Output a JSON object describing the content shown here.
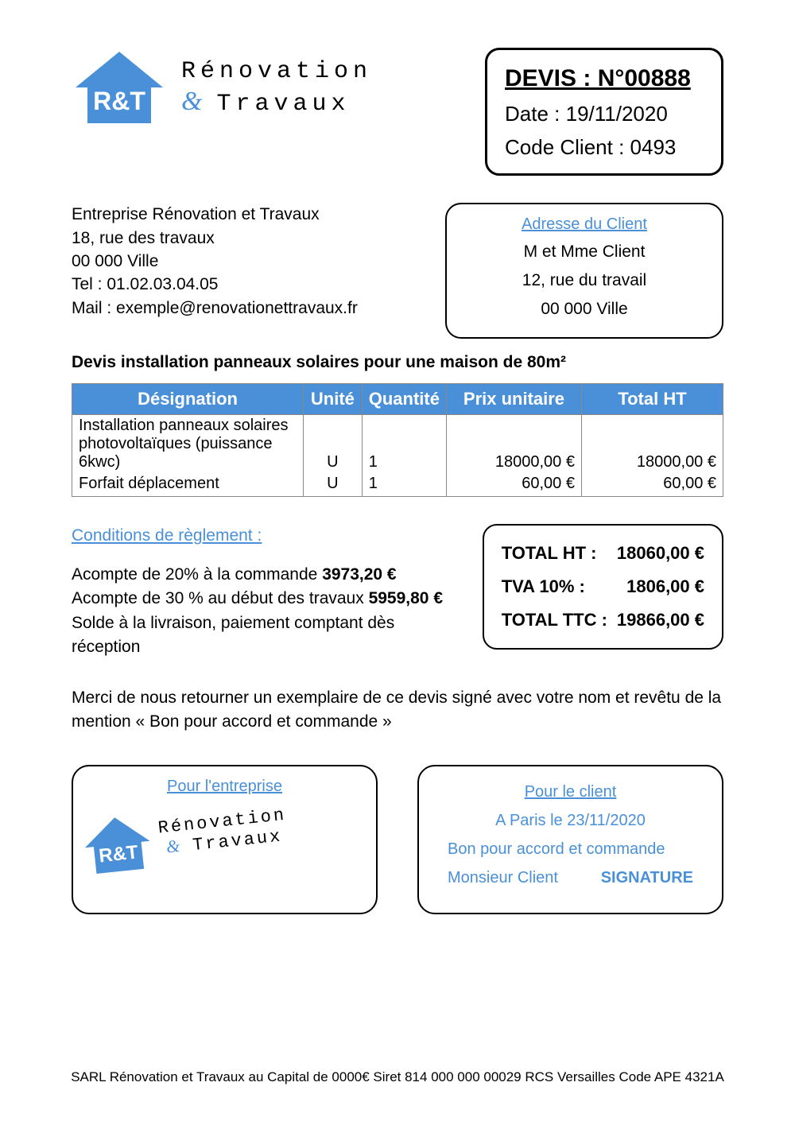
{
  "colors": {
    "accent": "#4a90d9",
    "text": "#000000",
    "table_header_bg": "#4a90d9",
    "table_header_fg": "#ffffff",
    "border": "#000000",
    "table_border": "#888888",
    "background": "#ffffff"
  },
  "logo": {
    "line1": "Rénovation",
    "ampersand": "&",
    "line2": "Travaux",
    "badge_text": "R&T"
  },
  "devis_box": {
    "title": "DEVIS : N°00888",
    "date_label": "Date :",
    "date": "19/11/2020",
    "code_label": "Code Client :",
    "code": "0493"
  },
  "company": {
    "name": "Entreprise Rénovation et Travaux",
    "street": "18, rue des travaux",
    "city": "00 000 Ville",
    "tel_label": "Tel :",
    "tel": "01.02.03.04.05",
    "mail_label": "Mail :",
    "mail": "exemple@renovationettravaux.fr"
  },
  "client": {
    "header": "Adresse du Client",
    "name": "M et Mme Client",
    "street": "12, rue du travail",
    "city": "00 000 Ville"
  },
  "devis_title": "Devis installation panneaux solaires pour une maison de 80m²",
  "table": {
    "columns": [
      "Désignation",
      "Unité",
      "Quantité",
      "Prix unitaire",
      "Total HT"
    ],
    "col_widths_pct": [
      36,
      9,
      12,
      21,
      22
    ],
    "rows": [
      {
        "designation_lines": [
          "Installation panneaux solaires",
          "photovoltaïques (puissance 6kwc)"
        ],
        "unit": "U",
        "qty": "1",
        "unit_price": "18000,00 €",
        "total": "18000,00 €"
      },
      {
        "designation_lines": [
          "Forfait déplacement"
        ],
        "unit": "U",
        "qty": "1",
        "unit_price": "60,00 €",
        "total": "60,00 €"
      }
    ]
  },
  "conditions": {
    "header": "Conditions de règlement :",
    "line1_pre": "Acompte de 20% à la commande ",
    "line1_bold": "3973,20 €",
    "line2_pre": "Acompte de 30 % au début des travaux ",
    "line2_bold": "5959,80 €",
    "line3": "Solde à la livraison, paiement comptant dès réception"
  },
  "totals": {
    "ht_label": "TOTAL HT :",
    "ht_value": "18060,00 €",
    "tva_label": "TVA 10% :",
    "tva_value": "1806,00 €",
    "ttc_label": "TOTAL TTC :",
    "ttc_value": "19866,00 €"
  },
  "return_text": "Merci de nous retourner un exemplaire de ce devis signé avec votre nom et revêtu de la mention « Bon pour accord et commande »",
  "sig_company": {
    "header": "Pour l'entreprise"
  },
  "sig_client": {
    "header": "Pour le client",
    "place_date": "A Paris le 23/11/2020",
    "approval": "Bon pour accord et commande",
    "name": "Monsieur Client",
    "signature": "SIGNATURE"
  },
  "footer": "SARL Rénovation et Travaux au Capital de 0000€ Siret 814 000 000 00029 RCS Versailles Code APE 4321A"
}
